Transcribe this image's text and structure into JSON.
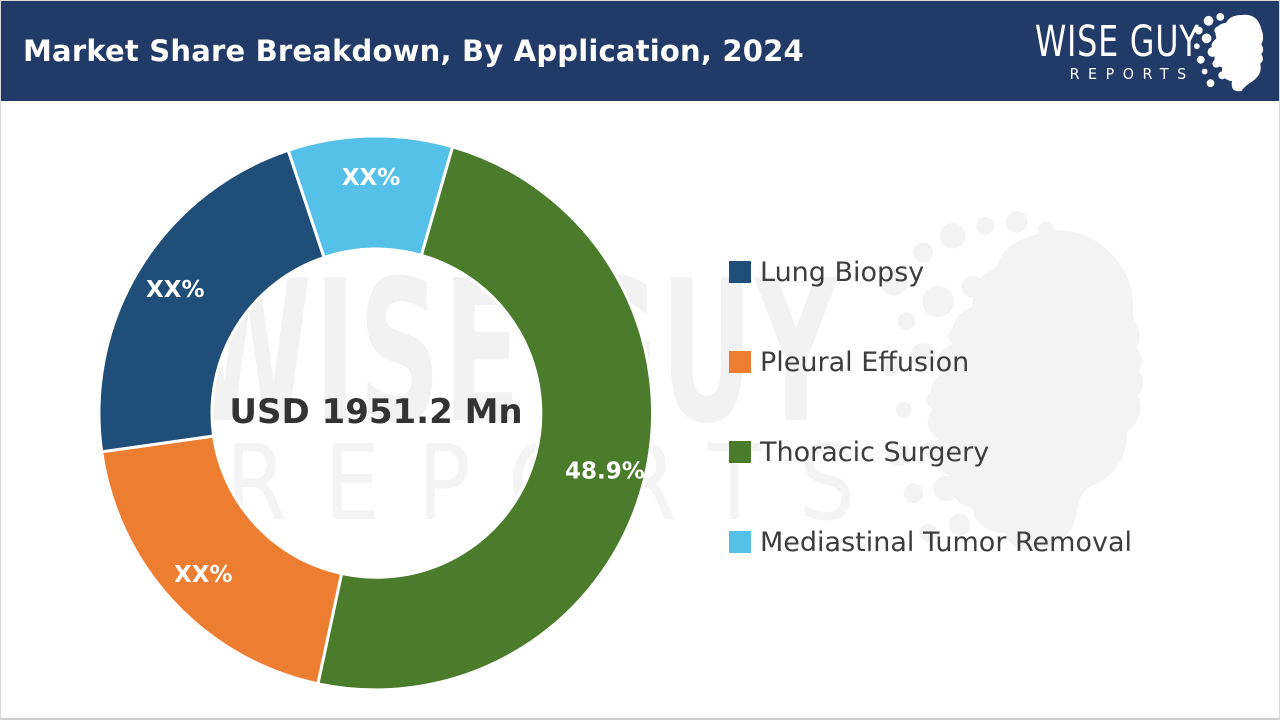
{
  "header": {
    "title": "Market Share Breakdown, By Application, 2024",
    "bg_color": "#213a68",
    "logo": {
      "wordmark": "WISE GUY",
      "subtext": "REPORTS"
    }
  },
  "watermark": {
    "wordmark": "WISE GUY",
    "subtext": "REPORTS"
  },
  "chart_data": {
    "type": "donut",
    "title": "Market Share Breakdown, By Application, 2024",
    "center_label": "USD 1951.2 Mn",
    "start_angle_deg": -18.5,
    "legend_position": "right",
    "segments": [
      {
        "name": "Mediastinal Tumor Removal",
        "label": "XX%",
        "value_pct": 9.6,
        "color": "#55c1e9"
      },
      {
        "name": "Thoracic Surgery",
        "label": "48.9%",
        "value_pct": 48.9,
        "color": "#4a7c2b"
      },
      {
        "name": "Pleural Effusion",
        "label": "XX%",
        "value_pct": 19.4,
        "color": "#ed7d31"
      },
      {
        "name": "Lung Biopsy",
        "label": "XX%",
        "value_pct": 22.1,
        "color": "#1f4e79"
      }
    ]
  },
  "legend": {
    "items": [
      {
        "label": "Lung Biopsy",
        "color": "#1f4e79"
      },
      {
        "label": "Pleural Effusion",
        "color": "#ed7d31"
      },
      {
        "label": "Thoracic Surgery",
        "color": "#4a7c2b"
      },
      {
        "label": "Mediastinal Tumor Removal",
        "color": "#55c1e9"
      }
    ]
  }
}
